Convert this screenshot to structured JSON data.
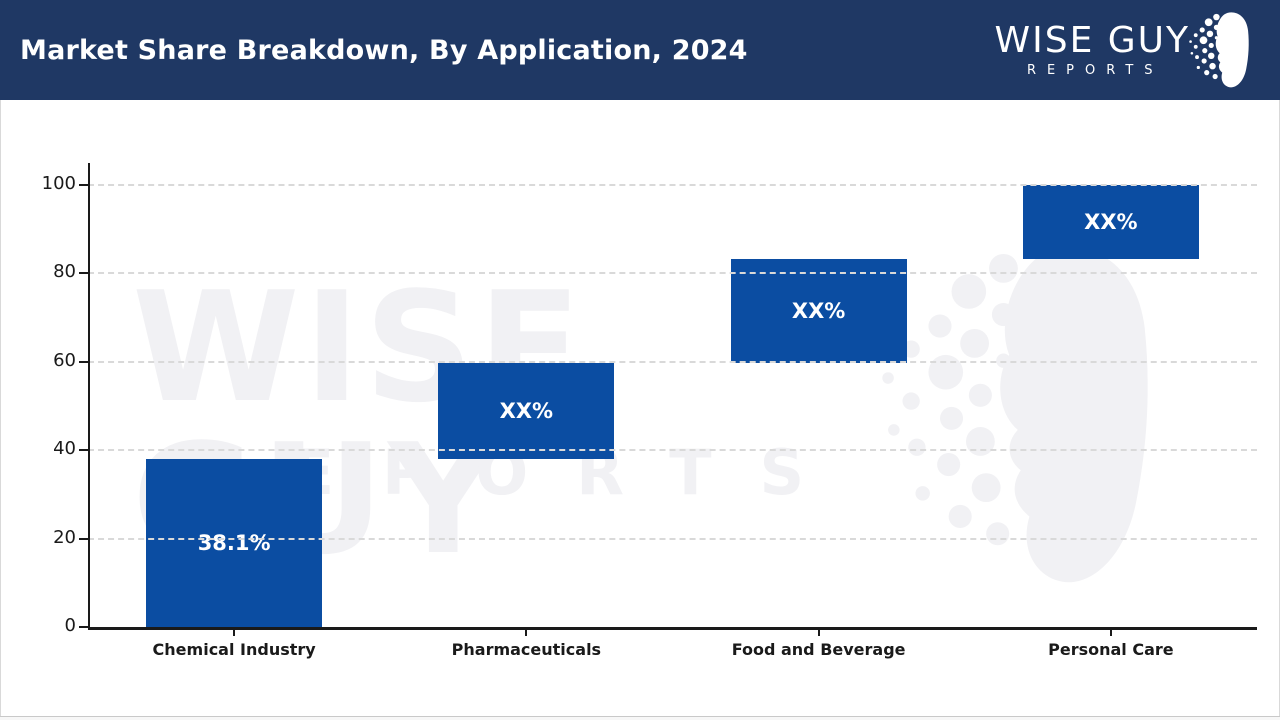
{
  "header": {
    "title": "Market Share Breakdown, By Application, 2024",
    "bg_color": "#1f3864",
    "logo": {
      "line1": "WISE GUY",
      "line2": "REPORTS"
    }
  },
  "watermark": {
    "line1": "WISE GUY",
    "line2": "REPORTS"
  },
  "colors": {
    "bar": "#0b4da2",
    "header_bg": "#1f3864",
    "bar_label": "#ffffff",
    "axis_text": "#1a1a1a",
    "gridline": "#d9d9d9",
    "watermark": "#f1f1f4"
  },
  "chart_data": {
    "type": "bar",
    "subtype": "waterfall",
    "title": "Market Share Breakdown, By Application, 2024",
    "categories": [
      "Chemical Industry",
      "Pharmaceuticals",
      "Food and Beverage",
      "Personal Care"
    ],
    "series": [
      {
        "name": "Market Share (%)",
        "segments": [
          {
            "category": "Chemical Industry",
            "start": 0,
            "end": 38.1,
            "label": "38.1%"
          },
          {
            "category": "Pharmaceuticals",
            "start": 38.1,
            "end": 59.7,
            "label": "XX%"
          },
          {
            "category": "Food and Beverage",
            "start": 59.7,
            "end": 83.2,
            "label": "XX%"
          },
          {
            "category": "Personal Care",
            "start": 83.2,
            "end": 100,
            "label": "XX%"
          }
        ]
      }
    ],
    "xlabel": "",
    "ylabel": "",
    "ylim": [
      0,
      100
    ],
    "yticks": [
      0,
      20,
      40,
      60,
      80,
      100
    ],
    "grid": "horizontal-dashed",
    "legend": "none"
  }
}
